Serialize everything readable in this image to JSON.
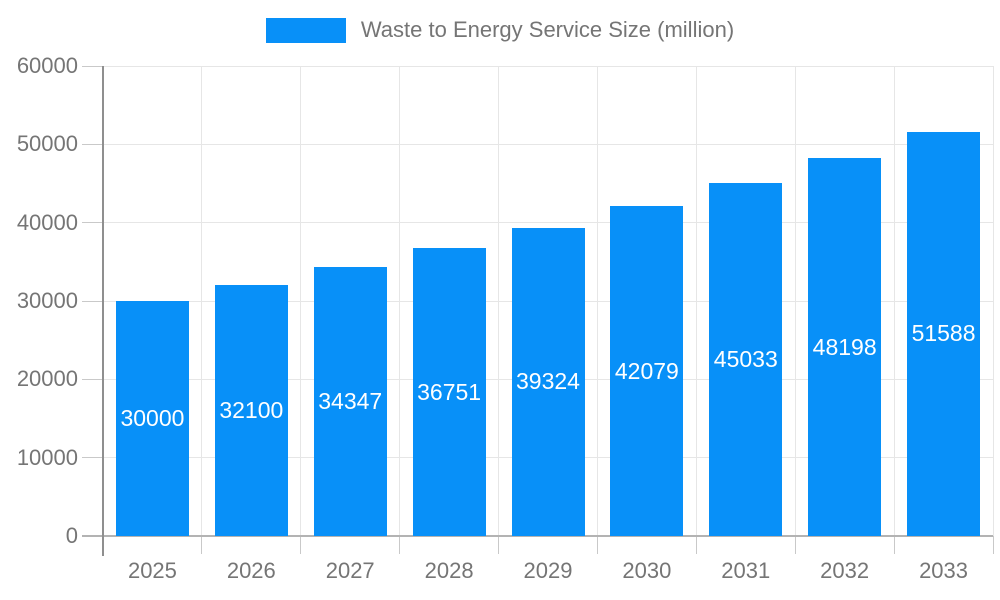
{
  "legend": {
    "label": "Waste to Energy Service Size (million)",
    "swatch_color": "#0890f8"
  },
  "chart_data": {
    "type": "bar",
    "title": "Waste to Energy Service Size (million)",
    "categories": [
      "2025",
      "2026",
      "2027",
      "2028",
      "2029",
      "2030",
      "2031",
      "2032",
      "2033"
    ],
    "values": [
      30000,
      32100,
      34347,
      36751,
      39324,
      42079,
      45033,
      48198,
      51588
    ],
    "xlabel": "",
    "ylabel": "",
    "ylim": [
      0,
      60000
    ],
    "ytick_interval": 10000,
    "ytick_labels": [
      "0",
      "10000",
      "20000",
      "30000",
      "40000",
      "50000",
      "60000"
    ],
    "bar_color": "#0890f8",
    "value_label_color": "#ffffff",
    "axis_label_color": "#757575",
    "grid": true,
    "legend_position": "top"
  }
}
